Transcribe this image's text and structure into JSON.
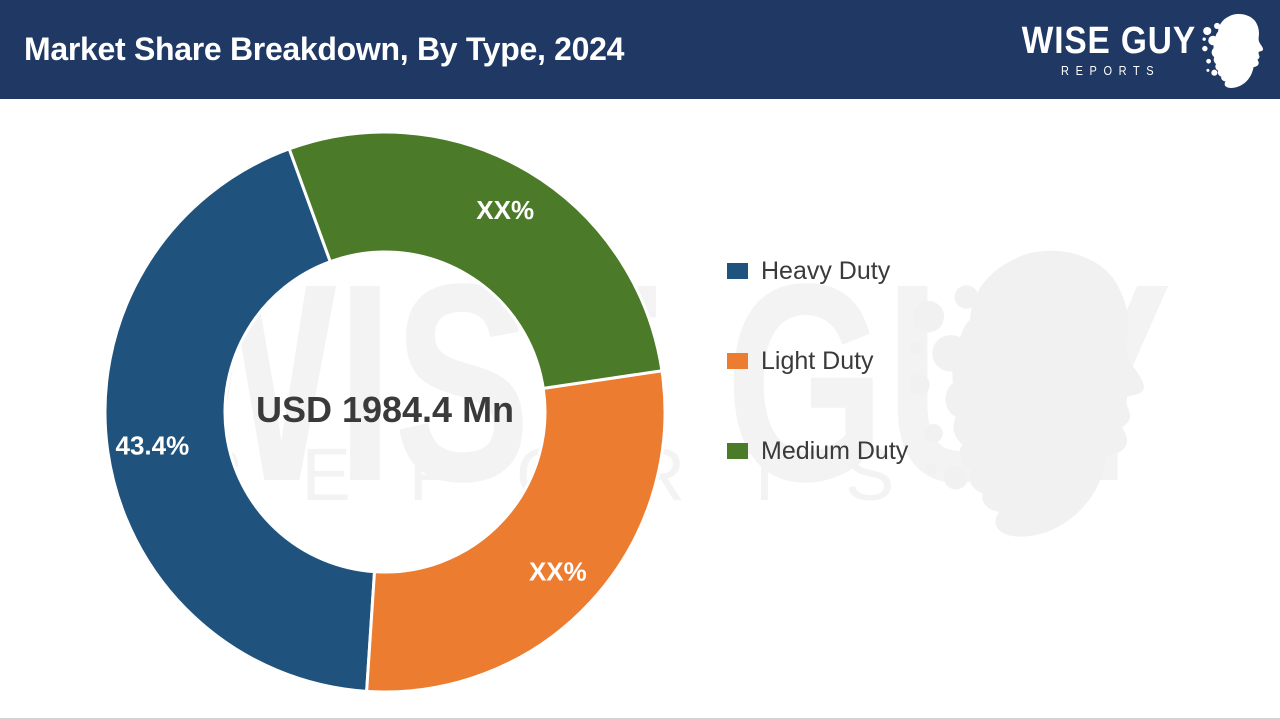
{
  "header": {
    "title": "Market Share Breakdown, By Type, 2024",
    "bg_color": "#1f3864",
    "logo": {
      "line1": "WISE GUY",
      "line2": "REPORTS"
    }
  },
  "watermark": {
    "line1": "WISE GUY",
    "line2": "REPORTS"
  },
  "chart_data": {
    "type": "pie",
    "subtype": "donut",
    "title": "Market Share Breakdown, By Type, 2024",
    "center_label": "USD 1984.4 Mn",
    "start_angle_deg": 110,
    "direction": "counterclockwise",
    "inner_radius_ratio": 0.57,
    "slices": [
      {
        "name": "Heavy Duty",
        "value": 43.4,
        "label": "43.4%",
        "color": "#1f537e"
      },
      {
        "name": "Light Duty",
        "value": 28.4,
        "label": "XX%",
        "color": "#ec7c30",
        "value_estimated": true
      },
      {
        "name": "Medium Duty",
        "value": 28.2,
        "label": "XX%",
        "color": "#4b7a28",
        "value_estimated": true
      }
    ],
    "legend": {
      "position": "right",
      "labels": [
        "Heavy Duty",
        "Light Duty",
        "Medium Duty"
      ]
    },
    "note": "Light Duty and Medium Duty shares are masked as XX% in the figure; their angular sizes are estimated from the drawing."
  },
  "colors": {
    "header_bg": "#1f3864",
    "text": "#3a3a3a",
    "watermark": "#f3f3f4",
    "bottom_rule": "#d3d3d3"
  }
}
